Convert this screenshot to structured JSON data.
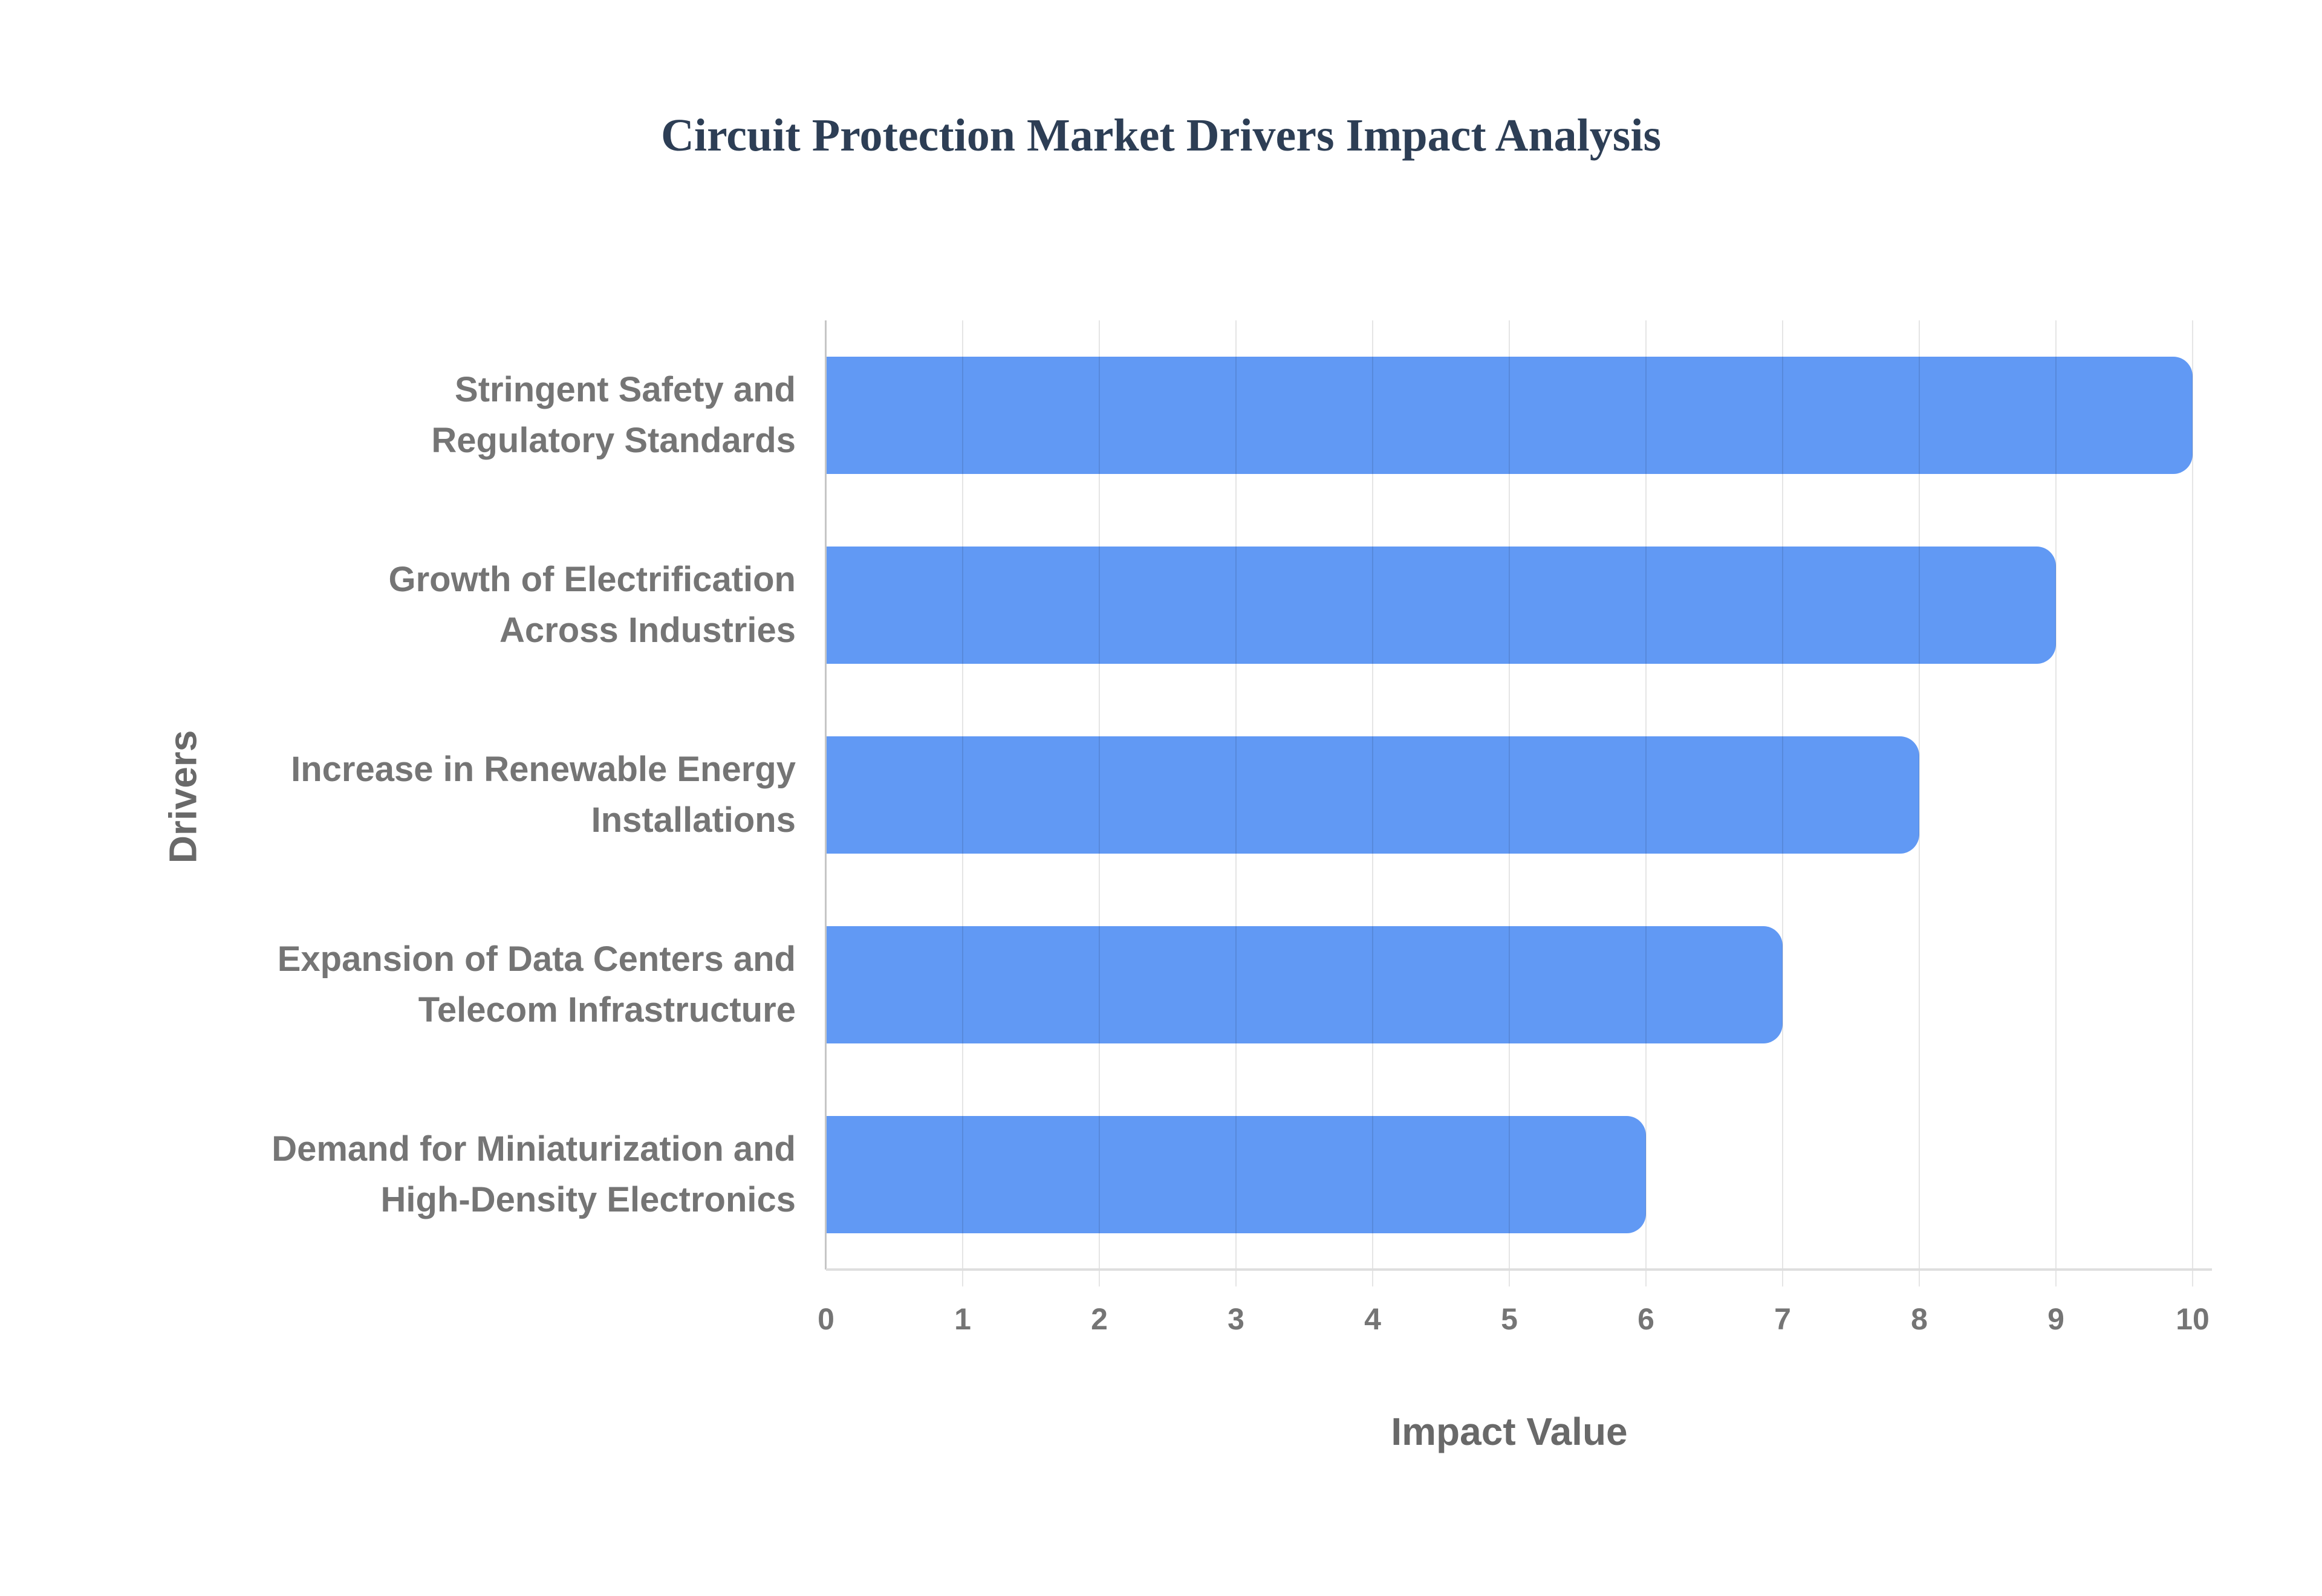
{
  "chart_data": {
    "type": "bar",
    "orientation": "horizontal",
    "title": "Circuit Protection Market Drivers Impact Analysis",
    "xlabel": "Impact Value",
    "ylabel": "Drivers",
    "categories": [
      "Stringent Safety and Regulatory Standards",
      "Growth of Electrification Across Industries",
      "Increase in Renewable Energy Installations",
      "Expansion of Data Centers and Telecom Infrastructure",
      "Demand for Miniaturization and High-Density Electronics"
    ],
    "categories_display": [
      "Stringent Safety and\nRegulatory Standards",
      "Growth of Electrification\nAcross Industries",
      "Increase in Renewable Energy\nInstallations",
      "Expansion of Data Centers and\nTelecom Infrastructure",
      "Demand for Miniaturization and\nHigh-Density Electronics"
    ],
    "values": [
      10,
      9,
      8,
      7,
      6
    ],
    "xlim": [
      0,
      10
    ],
    "xticks": [
      "0",
      "1",
      "2",
      "3",
      "4",
      "5",
      "6",
      "7",
      "8",
      "9",
      "10"
    ],
    "grid": "vertical-gridlines",
    "legend": "none",
    "colors": {
      "background": "#ffffff",
      "bar": "#6199f4",
      "title": "#2d3e55",
      "category_label": "#757575",
      "tick_label": "#757575",
      "axis_title": "#696969",
      "gridline": "#e6e6e6",
      "left_spine": "#c6c6c6",
      "baseline": "#dedede"
    }
  }
}
